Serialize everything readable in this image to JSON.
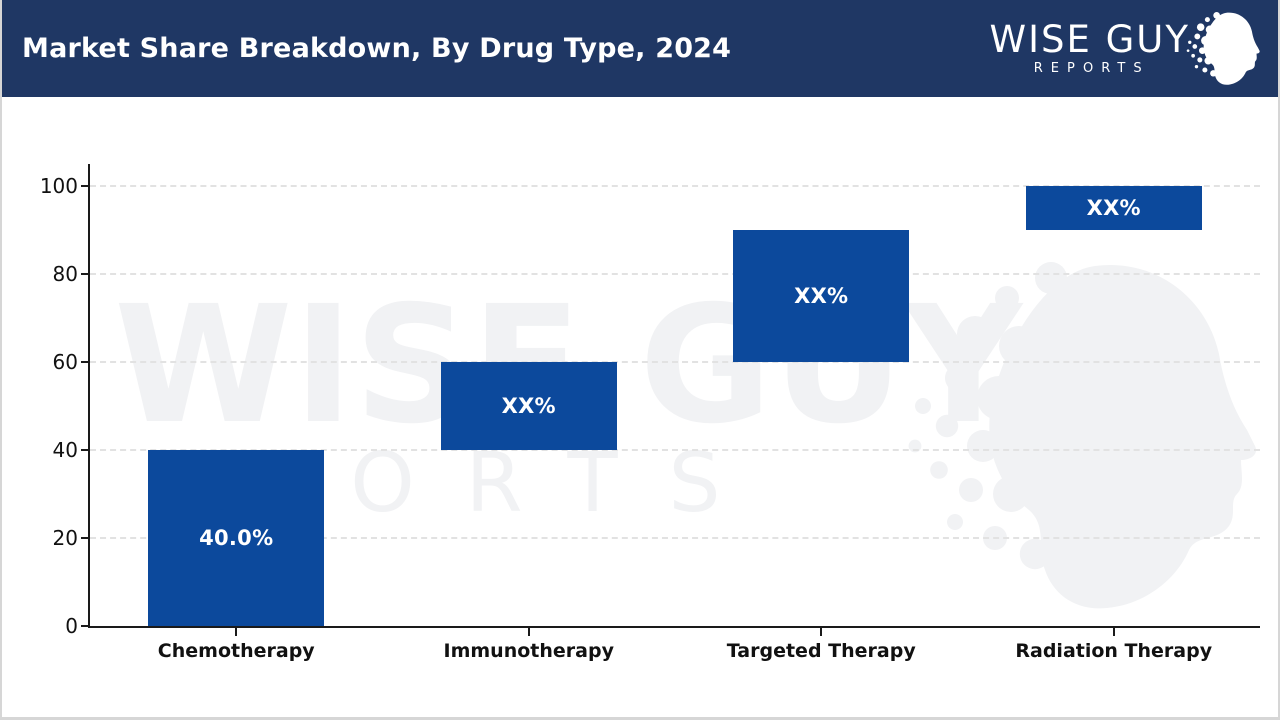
{
  "header": {
    "title": "Market Share Breakdown, By Drug Type, 2024",
    "logo": {
      "line1": "WISE GUY",
      "line2": "REPORTS"
    },
    "bg_color": "#1f3764"
  },
  "watermark": {
    "line1": "WISE GUY",
    "line2": "PORTS"
  },
  "chart_data": {
    "type": "bar",
    "subtype": "waterfall",
    "title": "Market Share Breakdown, By Drug Type, 2024",
    "xlabel": "",
    "ylabel": "",
    "categories": [
      "Chemotherapy",
      "Immunotherapy",
      "Targeted Therapy",
      "Radiation Therapy"
    ],
    "segments": [
      {
        "category": "Chemotherapy",
        "start": 0,
        "end": 40,
        "label": "40.0%"
      },
      {
        "category": "Immunotherapy",
        "start": 40,
        "end": 60,
        "label": "XX%"
      },
      {
        "category": "Targeted Therapy",
        "start": 60,
        "end": 90,
        "label": "XX%"
      },
      {
        "category": "Radiation Therapy",
        "start": 90,
        "end": 100,
        "label": "XX%"
      }
    ],
    "y_ticks": [
      0,
      20,
      40,
      60,
      80,
      100
    ],
    "ylim": [
      0,
      105
    ],
    "grid": "horizontal-dashed",
    "legend": "none",
    "bar_color": "#0c499c",
    "grid_color": "#e2e2e2",
    "axis_color": "#1a1a1a",
    "label_color": "#ffffff"
  }
}
